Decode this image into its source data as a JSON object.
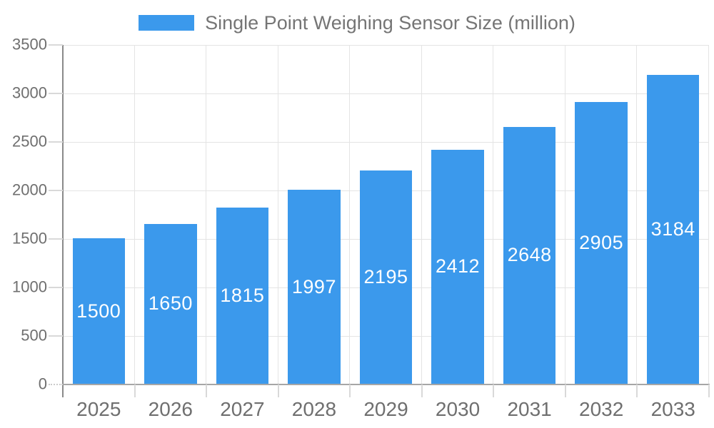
{
  "chart_data": {
    "type": "bar",
    "legend": "Single Point Weighing Sensor Size (million)",
    "legend_position": "top-center",
    "categories": [
      "2025",
      "2026",
      "2027",
      "2028",
      "2029",
      "2030",
      "2031",
      "2032",
      "2033"
    ],
    "values": [
      1500,
      1650,
      1815,
      1997,
      2195,
      2412,
      2648,
      2905,
      3184
    ],
    "bar_value_labels": [
      "1500",
      "1650",
      "1815",
      "1997",
      "2195",
      "2412",
      "2648",
      "2905",
      "3184"
    ],
    "ylim": [
      0,
      3500
    ],
    "ytick_step": 500,
    "y_tick_labels": [
      "0",
      "500",
      "1000",
      "1500",
      "2000",
      "2500",
      "3000",
      "3500"
    ],
    "grid": "on",
    "colors": {
      "bar": "#3B99EC",
      "bar_label_text": "#FFFFFF",
      "axis_label_text": "#6F6F6F",
      "legend_text": "#757575",
      "gridline": "#E4E4E4",
      "tick": "#D9D9D9",
      "y_axis_line": "#8A8A8A",
      "x_axis_line": "#A6A6A6",
      "background": "#FFFFFF"
    }
  }
}
